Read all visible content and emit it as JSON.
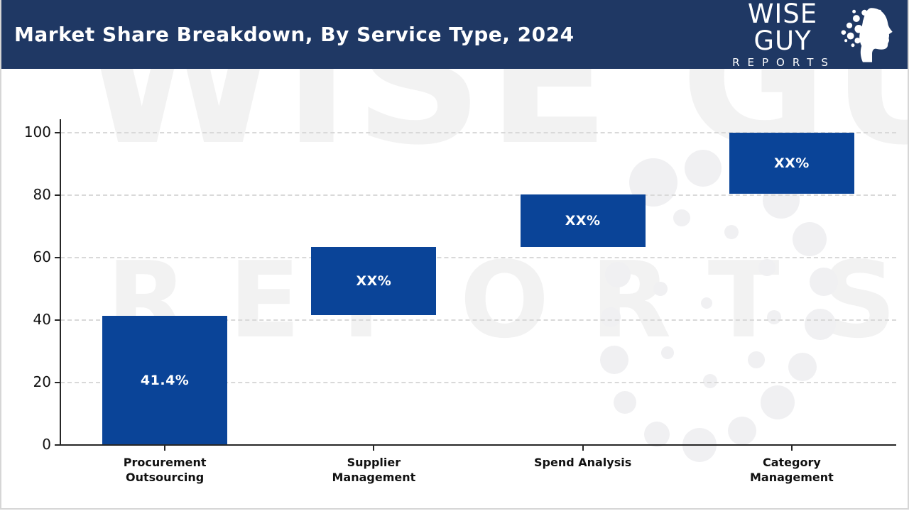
{
  "header": {
    "title": "Market Share Breakdown, By Service Type, 2024",
    "logo": {
      "name_line": "WISE GUY",
      "sub_line": "REPORTS"
    }
  },
  "watermark": {
    "line1": "WISE GUY",
    "line2": "REPORTS"
  },
  "colors": {
    "header_bg": "#1f3864",
    "bar_fill": "#0a4498",
    "bar_label_text": "#ffffff",
    "grid_line": "#d9d9d9",
    "axis_line": "#262626",
    "tick_label_text": "#111111",
    "watermark_gray": "#f2f2f2",
    "frame_border": "#d6d6d6"
  },
  "chart_data": {
    "type": "bar",
    "subtype": "floating-bar-waterfall",
    "title": "Market Share Breakdown, By Service Type, 2024",
    "categories": [
      "Procurement Outsourcing",
      "Supplier Management",
      "Spend Analysis",
      "Category Management"
    ],
    "bars": [
      {
        "category": "Procurement\nOutsourcing",
        "start": 0,
        "end": 41.4,
        "label": "41.4%"
      },
      {
        "category": "Supplier\nManagement",
        "start": 41.5,
        "end": 63.3,
        "label": "XX%"
      },
      {
        "category": "Spend Analysis",
        "start": 63.5,
        "end": 80.3,
        "label": "XX%"
      },
      {
        "category": "Category\nManagement",
        "start": 80.5,
        "end": 100,
        "label": "XX%"
      }
    ],
    "xlabel": "",
    "ylabel": "",
    "ylim": [
      0,
      100
    ],
    "yticks": [
      0,
      20,
      40,
      60,
      80,
      100
    ],
    "grid": "horizontal-dashed",
    "legend": false
  }
}
